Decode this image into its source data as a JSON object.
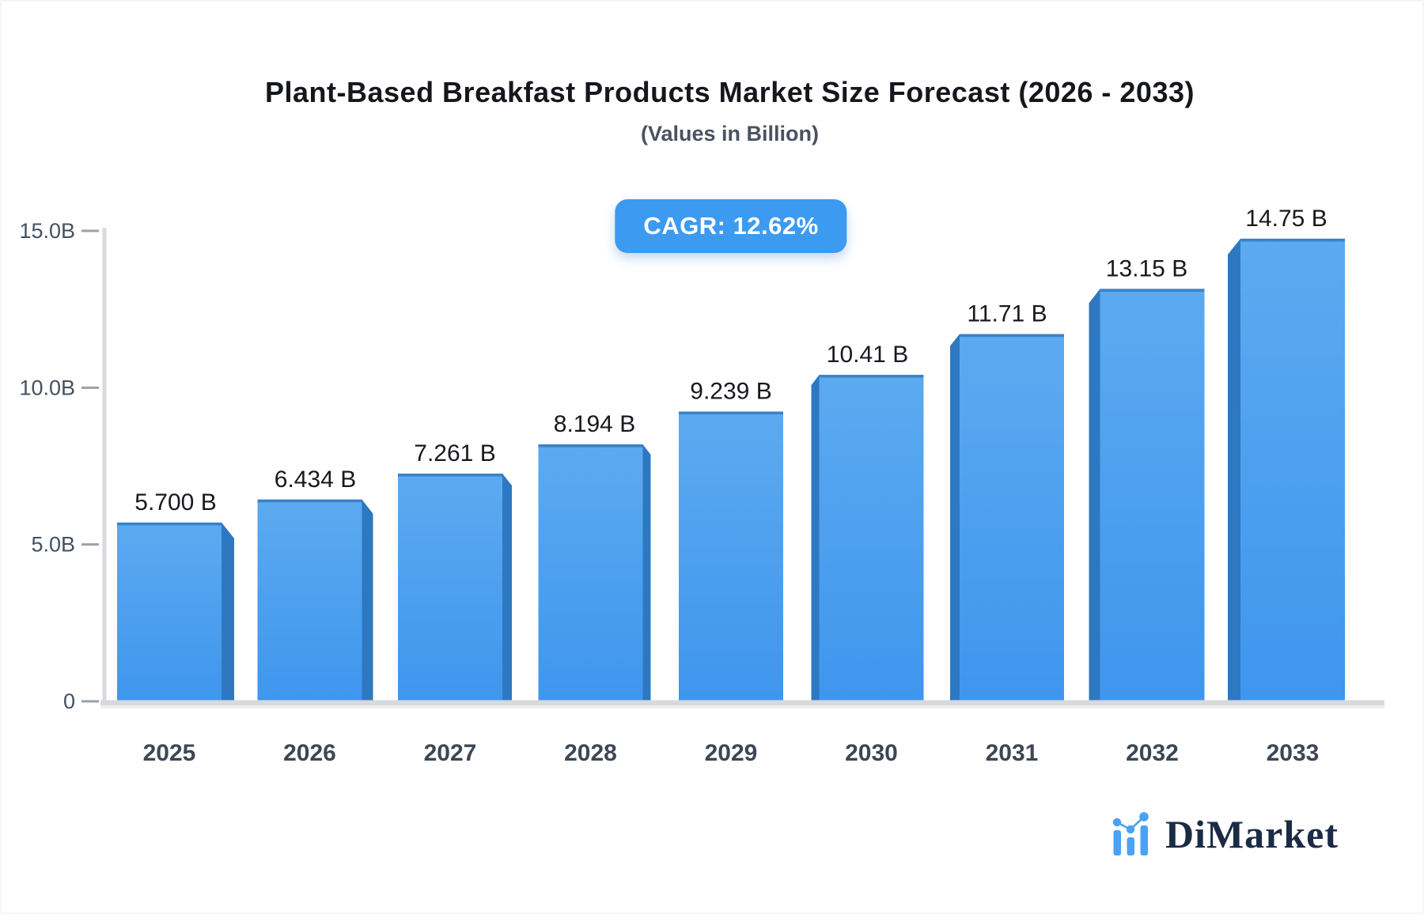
{
  "header": {
    "title": "Plant-Based Breakfast Products Market Size Forecast (2026 - 2033)",
    "subtitle": "(Values in Billion)",
    "cagr_badge": "CAGR: 12.62%"
  },
  "chart_data": {
    "type": "bar",
    "title": "Plant-Based Breakfast Products Market Size Forecast (2026 - 2033)",
    "subtitle": "(Values in Billion)",
    "categories": [
      "2025",
      "2026",
      "2027",
      "2028",
      "2029",
      "2030",
      "2031",
      "2032",
      "2033"
    ],
    "values": [
      5.7,
      6.434,
      7.261,
      8.194,
      9.239,
      10.41,
      11.71,
      13.15,
      14.75
    ],
    "value_labels": [
      "5.700 B",
      "6.434 B",
      "7.261 B",
      "8.194 B",
      "9.239 B",
      "10.41 B",
      "11.71 B",
      "13.15 B",
      "14.75 B"
    ],
    "cagr": "12.62%",
    "unit": "Billion",
    "ylim": [
      0,
      15
    ],
    "yticks": [
      {
        "v": 0,
        "label": "0"
      },
      {
        "v": 5,
        "label": "5.0B"
      },
      {
        "v": 10,
        "label": "10.0B"
      },
      {
        "v": 15,
        "label": "15.0B"
      }
    ],
    "grid": false,
    "legend": "none",
    "style_3d_perspective": "center",
    "colors": {
      "bar_face_top": "#5caaf0",
      "bar_face_bottom": "#3f96ee",
      "bar_side": "#2d78c1",
      "bar_top_edge": "#3b82c9",
      "axis_line": "#d7d9dd",
      "axis_shadow": "#edeff2",
      "tick_dash": "#9aa1ab",
      "ytick_text": "#45505f",
      "xtick_text": "#3d4754",
      "value_label_text": "#17191f",
      "badge_bg": "#3d9af1"
    }
  },
  "footer": {
    "brand": "DiMarket",
    "brand_color": "#1c2b45",
    "brand_icon_color": "#4ba1f6"
  }
}
